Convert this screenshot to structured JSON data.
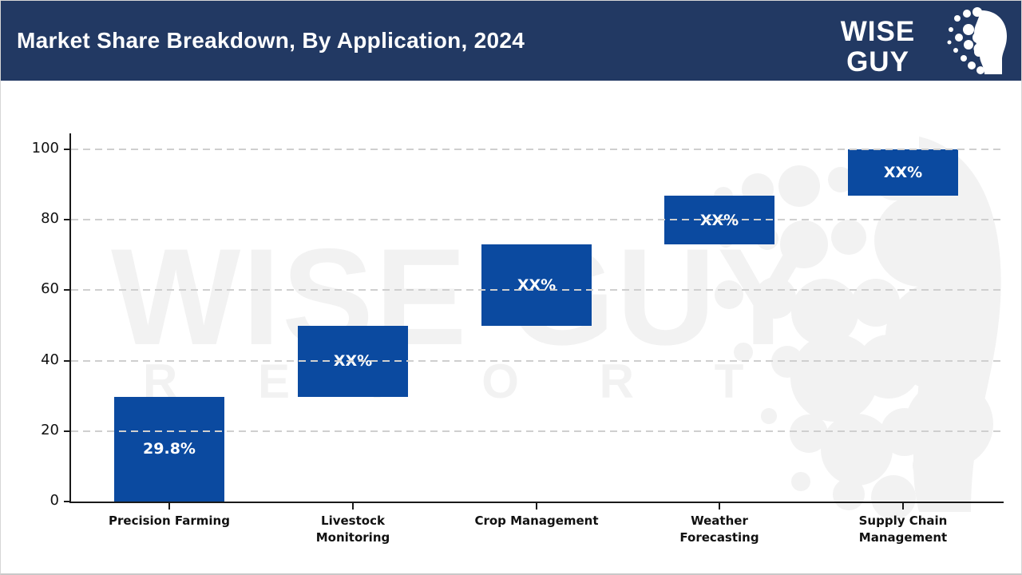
{
  "header": {
    "title": "Market Share Breakdown, By Application, 2024",
    "logo_line1": "WISE GUY",
    "logo_line2": "R E P O R T S",
    "bg_color": "#223963"
  },
  "watermark": {
    "line1": "WISE GUY",
    "line2": "R E P O R T S"
  },
  "chart_data": {
    "type": "bar",
    "subtype": "floating_segment_waterfall",
    "title": "Market Share Breakdown, By Application, 2024",
    "categories": [
      "Precision Farming",
      "Livestock\nMonitoring",
      "Crop Management",
      "Weather\nForecasting",
      "Supply Chain\nManagement"
    ],
    "series": [
      {
        "name": "Market share (%)",
        "segments": [
          {
            "category": "Precision Farming",
            "start": 0,
            "end": 29.8,
            "label": "29.8%"
          },
          {
            "category": "Livestock Monitoring",
            "start": 29.8,
            "end": 49.8,
            "label": "XX%"
          },
          {
            "category": "Crop Management",
            "start": 49.8,
            "end": 73.0,
            "label": "XX%"
          },
          {
            "category": "Weather Forecasting",
            "start": 73.0,
            "end": 86.8,
            "label": "XX%"
          },
          {
            "category": "Supply Chain Management",
            "start": 86.8,
            "end": 100,
            "label": "XX%"
          }
        ]
      }
    ],
    "xlabel": "",
    "ylabel": "",
    "ylim": [
      0,
      105
    ],
    "yticks": [
      0,
      20,
      40,
      60,
      80,
      100
    ],
    "grid": "horizontal dashed gridlines drawn above bars",
    "legend": "none",
    "colors": {
      "bar": "#0b4aa0",
      "bar_label": "#ffffff",
      "grid": "#cfcfcf",
      "axis": "#1a1a1a",
      "tick_label": "#111111",
      "header_bg": "#223963",
      "watermark": "#f2f2f2"
    }
  }
}
